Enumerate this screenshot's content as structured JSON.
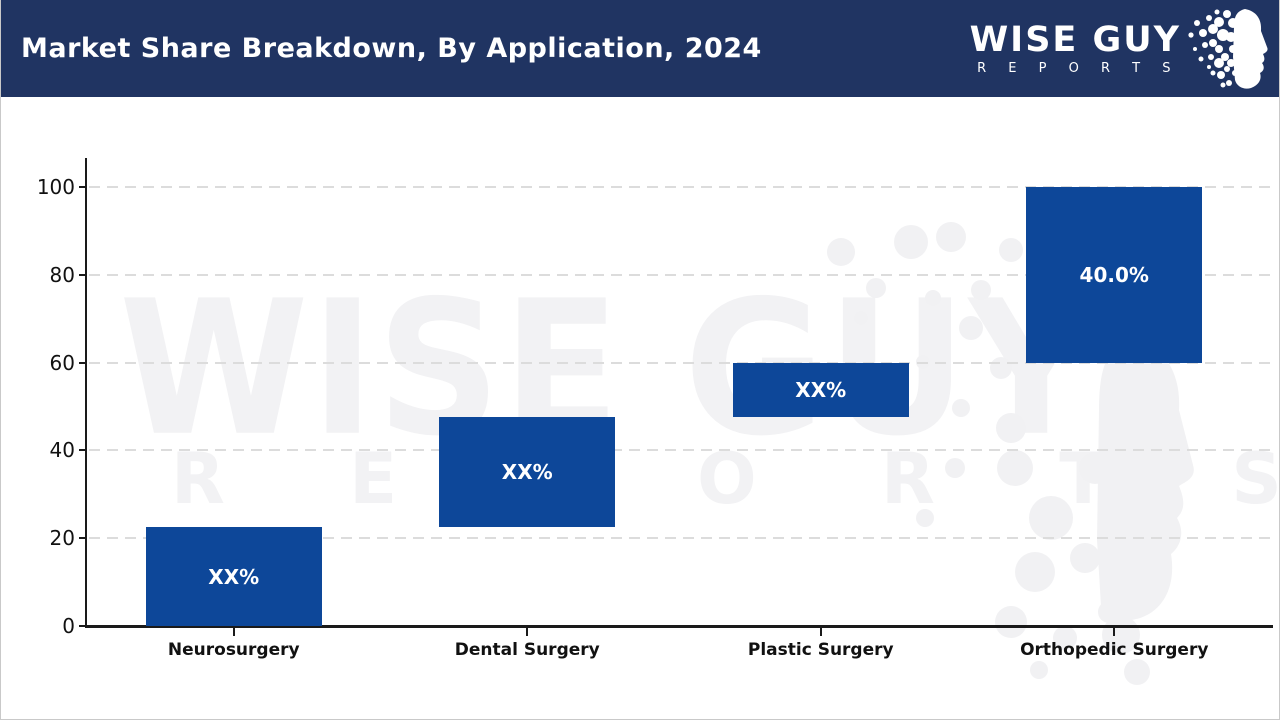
{
  "header": {
    "title": "Market Share Breakdown, By Application, 2024",
    "background_color": "#203462",
    "logo": {
      "wordmark": "WISE GUY",
      "subtext": "R E P O R T S"
    }
  },
  "watermark": {
    "line1": "WISE GUY",
    "line2": "R E P O R T S"
  },
  "chart_data": {
    "type": "bar",
    "variant": "waterfall",
    "title": "Market Share Breakdown, By Application, 2024",
    "xlabel": "",
    "ylabel": "",
    "categories": [
      "Neurosurgery",
      "Dental Surgery",
      "Plastic Surgery",
      "Orthopedic Surgery"
    ],
    "series": [
      {
        "name": "Market Share (%)",
        "starts": [
          0,
          22.5,
          47.5,
          60
        ],
        "ends": [
          22.5,
          47.5,
          60,
          100
        ],
        "values": [
          22.5,
          25.0,
          12.5,
          40.0
        ],
        "labels": [
          "XX%",
          "XX%",
          "XX%",
          "40.0%"
        ]
      }
    ],
    "yticks": [
      0,
      20,
      40,
      60,
      80,
      100
    ],
    "ytick_labels": [
      "0",
      "20",
      "40",
      "60",
      "80",
      "100"
    ],
    "ylim": [
      0,
      106
    ],
    "grid": "horizontal-dashed",
    "legend": "none",
    "bar_color": "#0d4799",
    "bar_label_color": "#ffffff",
    "axis_color": "#1a1a1a",
    "gridline_color": "#dcdcdc"
  }
}
